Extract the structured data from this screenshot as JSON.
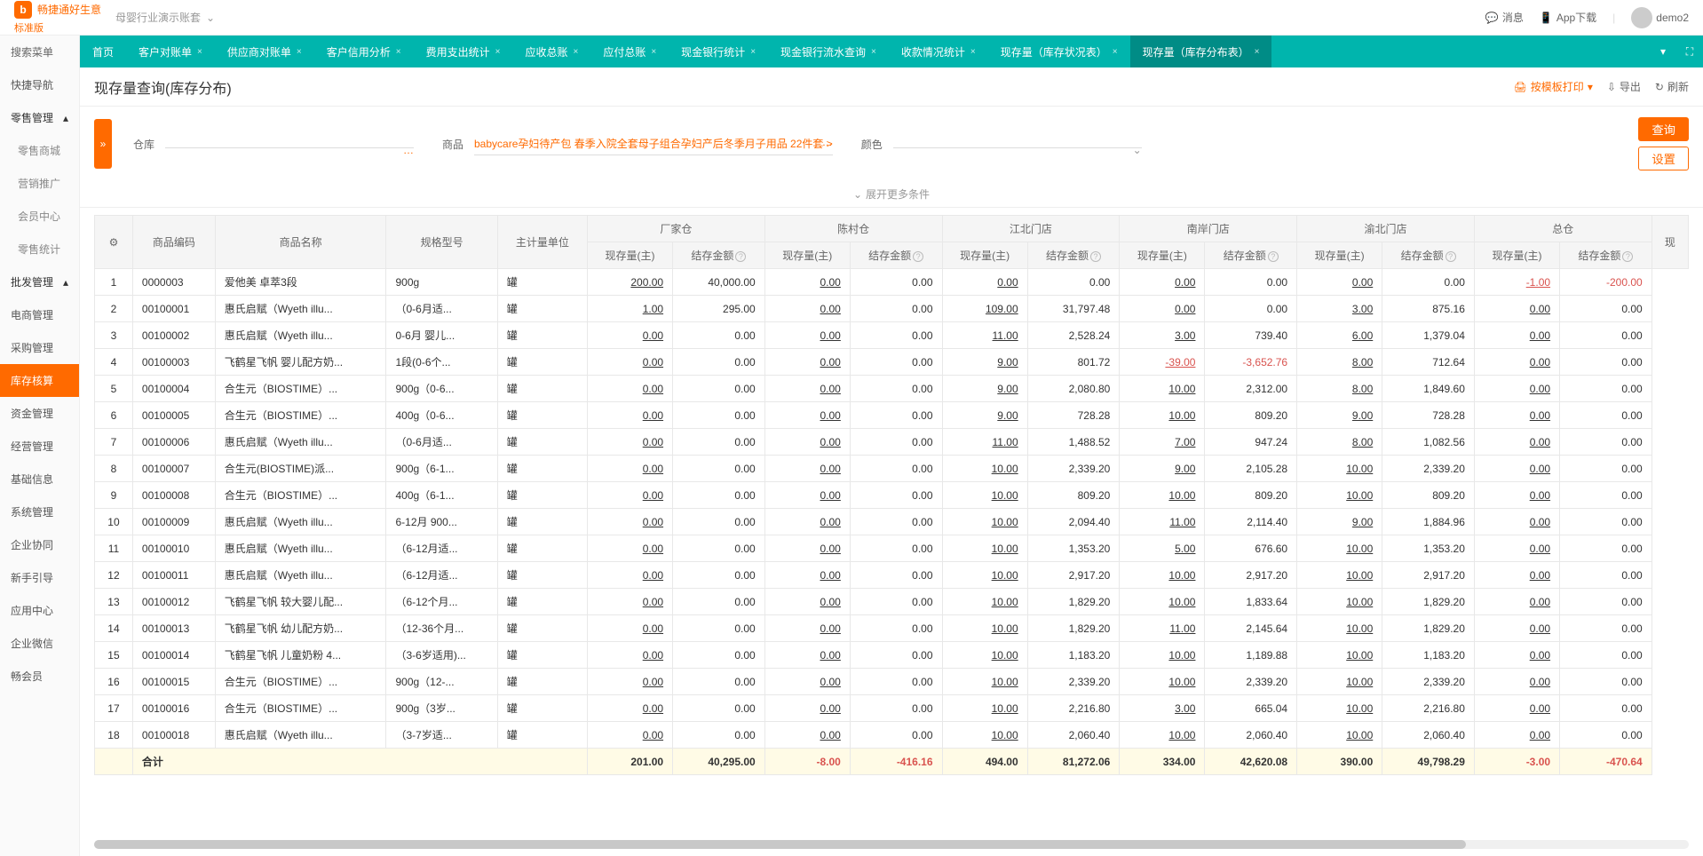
{
  "top": {
    "brand": "畅捷通好生意",
    "edition": "标准版",
    "org": "母婴行业演示账套",
    "msg": "消息",
    "app": "App下载",
    "user": "demo2"
  },
  "sidebar": {
    "search": "搜索菜单",
    "quick": "快捷导航",
    "sections": [
      {
        "label": "零售管理",
        "expanded": true,
        "children": [
          "零售商城",
          "营销推广",
          "会员中心",
          "零售统计"
        ]
      },
      {
        "label": "批发管理",
        "expanded": true,
        "children": []
      }
    ],
    "rest": [
      "电商管理",
      "采购管理",
      "库存核算",
      "资金管理",
      "经营管理",
      "基础信息",
      "系统管理",
      "企业协同",
      "新手引导",
      "应用中心",
      "企业微信",
      "畅会员"
    ],
    "active": "库存核算"
  },
  "tabs": {
    "items": [
      "首页",
      "客户对账单",
      "供应商对账单",
      "客户信用分析",
      "费用支出统计",
      "应收总账",
      "应付总账",
      "现金银行统计",
      "现金银行流水查询",
      "收款情况统计",
      "现存量（库存状况表）",
      "现存量（库存分布表）"
    ],
    "active": 11
  },
  "page": {
    "title": "现存量查询(库存分布)",
    "actions": {
      "print": "按模板打印",
      "export": "导出",
      "refresh": "刷新"
    }
  },
  "filters": {
    "warehouse_label": "仓库",
    "warehouse_value": "",
    "product_label": "商品",
    "product_value": "babycare孕妇待产包 春季入院全套母子组合孕妇产后冬季月子用品 22件套 >",
    "color_label": "颜色",
    "color_value": "",
    "search_btn": "查询",
    "setting_btn": "设置",
    "expand": "展开更多条件"
  },
  "table": {
    "fixed_headers": [
      "",
      "商品编码",
      "商品名称",
      "规格型号",
      "主计量单位"
    ],
    "gear": "⚙",
    "groups": [
      "厂家仓",
      "陈村仓",
      "江北门店",
      "南岸门店",
      "渝北门店",
      "总仓"
    ],
    "sub_headers": [
      "现存量(主)",
      "结存金额"
    ],
    "extra_col": "现",
    "rows": [
      {
        "n": 1,
        "code": "0000003",
        "name": "爱他美 卓萃3段",
        "spec": "900g",
        "unit": "罐",
        "v": [
          "200.00",
          "40,000.00",
          "0.00",
          "0.00",
          "0.00",
          "0.00",
          "0.00",
          "0.00",
          "0.00",
          "0.00",
          "-1.00",
          "-200.00"
        ]
      },
      {
        "n": 2,
        "code": "00100001",
        "name": "惠氏启赋（Wyeth illu...",
        "spec": "（0-6月适...",
        "unit": "罐",
        "v": [
          "1.00",
          "295.00",
          "0.00",
          "0.00",
          "109.00",
          "31,797.48",
          "0.00",
          "0.00",
          "3.00",
          "875.16",
          "0.00",
          "0.00"
        ]
      },
      {
        "n": 3,
        "code": "00100002",
        "name": "惠氏启赋（Wyeth illu...",
        "spec": "0-6月 婴儿...",
        "unit": "罐",
        "v": [
          "0.00",
          "0.00",
          "0.00",
          "0.00",
          "11.00",
          "2,528.24",
          "3.00",
          "739.40",
          "6.00",
          "1,379.04",
          "0.00",
          "0.00"
        ]
      },
      {
        "n": 4,
        "code": "00100003",
        "name": "飞鹤星飞帆 婴儿配方奶...",
        "spec": "1段(0-6个...",
        "unit": "罐",
        "v": [
          "0.00",
          "0.00",
          "0.00",
          "0.00",
          "9.00",
          "801.72",
          "-39.00",
          "-3,652.76",
          "8.00",
          "712.64",
          "0.00",
          "0.00"
        ]
      },
      {
        "n": 5,
        "code": "00100004",
        "name": "合生元（BIOSTIME）...",
        "spec": "900g（0-6...",
        "unit": "罐",
        "v": [
          "0.00",
          "0.00",
          "0.00",
          "0.00",
          "9.00",
          "2,080.80",
          "10.00",
          "2,312.00",
          "8.00",
          "1,849.60",
          "0.00",
          "0.00"
        ]
      },
      {
        "n": 6,
        "code": "00100005",
        "name": "合生元（BIOSTIME）...",
        "spec": "400g（0-6...",
        "unit": "罐",
        "v": [
          "0.00",
          "0.00",
          "0.00",
          "0.00",
          "9.00",
          "728.28",
          "10.00",
          "809.20",
          "9.00",
          "728.28",
          "0.00",
          "0.00"
        ]
      },
      {
        "n": 7,
        "code": "00100006",
        "name": "惠氏启赋（Wyeth illu...",
        "spec": "（0-6月适...",
        "unit": "罐",
        "v": [
          "0.00",
          "0.00",
          "0.00",
          "0.00",
          "11.00",
          "1,488.52",
          "7.00",
          "947.24",
          "8.00",
          "1,082.56",
          "0.00",
          "0.00"
        ]
      },
      {
        "n": 8,
        "code": "00100007",
        "name": "合生元(BIOSTIME)派...",
        "spec": "900g（6-1...",
        "unit": "罐",
        "v": [
          "0.00",
          "0.00",
          "0.00",
          "0.00",
          "10.00",
          "2,339.20",
          "9.00",
          "2,105.28",
          "10.00",
          "2,339.20",
          "0.00",
          "0.00"
        ]
      },
      {
        "n": 9,
        "code": "00100008",
        "name": "合生元（BIOSTIME）...",
        "spec": "400g（6-1...",
        "unit": "罐",
        "v": [
          "0.00",
          "0.00",
          "0.00",
          "0.00",
          "10.00",
          "809.20",
          "10.00",
          "809.20",
          "10.00",
          "809.20",
          "0.00",
          "0.00"
        ]
      },
      {
        "n": 10,
        "code": "00100009",
        "name": "惠氏启赋（Wyeth illu...",
        "spec": "6-12月 900...",
        "unit": "罐",
        "v": [
          "0.00",
          "0.00",
          "0.00",
          "0.00",
          "10.00",
          "2,094.40",
          "11.00",
          "2,114.40",
          "9.00",
          "1,884.96",
          "0.00",
          "0.00"
        ]
      },
      {
        "n": 11,
        "code": "00100010",
        "name": "惠氏启赋（Wyeth illu...",
        "spec": "（6-12月适...",
        "unit": "罐",
        "v": [
          "0.00",
          "0.00",
          "0.00",
          "0.00",
          "10.00",
          "1,353.20",
          "5.00",
          "676.60",
          "10.00",
          "1,353.20",
          "0.00",
          "0.00"
        ]
      },
      {
        "n": 12,
        "code": "00100011",
        "name": "惠氏启赋（Wyeth illu...",
        "spec": "（6-12月适...",
        "unit": "罐",
        "v": [
          "0.00",
          "0.00",
          "0.00",
          "0.00",
          "10.00",
          "2,917.20",
          "10.00",
          "2,917.20",
          "10.00",
          "2,917.20",
          "0.00",
          "0.00"
        ]
      },
      {
        "n": 13,
        "code": "00100012",
        "name": "飞鹤星飞帆 较大婴儿配...",
        "spec": "（6-12个月...",
        "unit": "罐",
        "v": [
          "0.00",
          "0.00",
          "0.00",
          "0.00",
          "10.00",
          "1,829.20",
          "10.00",
          "1,833.64",
          "10.00",
          "1,829.20",
          "0.00",
          "0.00"
        ]
      },
      {
        "n": 14,
        "code": "00100013",
        "name": "飞鹤星飞帆 幼儿配方奶...",
        "spec": "（12-36个月...",
        "unit": "罐",
        "v": [
          "0.00",
          "0.00",
          "0.00",
          "0.00",
          "10.00",
          "1,829.20",
          "11.00",
          "2,145.64",
          "10.00",
          "1,829.20",
          "0.00",
          "0.00"
        ]
      },
      {
        "n": 15,
        "code": "00100014",
        "name": "飞鹤星飞帆 儿童奶粉 4...",
        "spec": "（3-6岁适用)...",
        "unit": "罐",
        "v": [
          "0.00",
          "0.00",
          "0.00",
          "0.00",
          "10.00",
          "1,183.20",
          "10.00",
          "1,189.88",
          "10.00",
          "1,183.20",
          "0.00",
          "0.00"
        ]
      },
      {
        "n": 16,
        "code": "00100015",
        "name": "合生元（BIOSTIME）...",
        "spec": "900g（12-...",
        "unit": "罐",
        "v": [
          "0.00",
          "0.00",
          "0.00",
          "0.00",
          "10.00",
          "2,339.20",
          "10.00",
          "2,339.20",
          "10.00",
          "2,339.20",
          "0.00",
          "0.00"
        ]
      },
      {
        "n": 17,
        "code": "00100016",
        "name": "合生元（BIOSTIME）...",
        "spec": "900g（3岁...",
        "unit": "罐",
        "v": [
          "0.00",
          "0.00",
          "0.00",
          "0.00",
          "10.00",
          "2,216.80",
          "3.00",
          "665.04",
          "10.00",
          "2,216.80",
          "0.00",
          "0.00"
        ]
      },
      {
        "n": 18,
        "code": "00100018",
        "name": "惠氏启赋（Wyeth illu...",
        "spec": "（3-7岁适...",
        "unit": "罐",
        "v": [
          "0.00",
          "0.00",
          "0.00",
          "0.00",
          "10.00",
          "2,060.40",
          "10.00",
          "2,060.40",
          "10.00",
          "2,060.40",
          "0.00",
          "0.00"
        ]
      }
    ],
    "total_label": "合计",
    "total": [
      "201.00",
      "40,295.00",
      "-8.00",
      "-416.16",
      "494.00",
      "81,272.06",
      "334.00",
      "42,620.08",
      "390.00",
      "49,798.29",
      "-3.00",
      "-470.64"
    ]
  }
}
